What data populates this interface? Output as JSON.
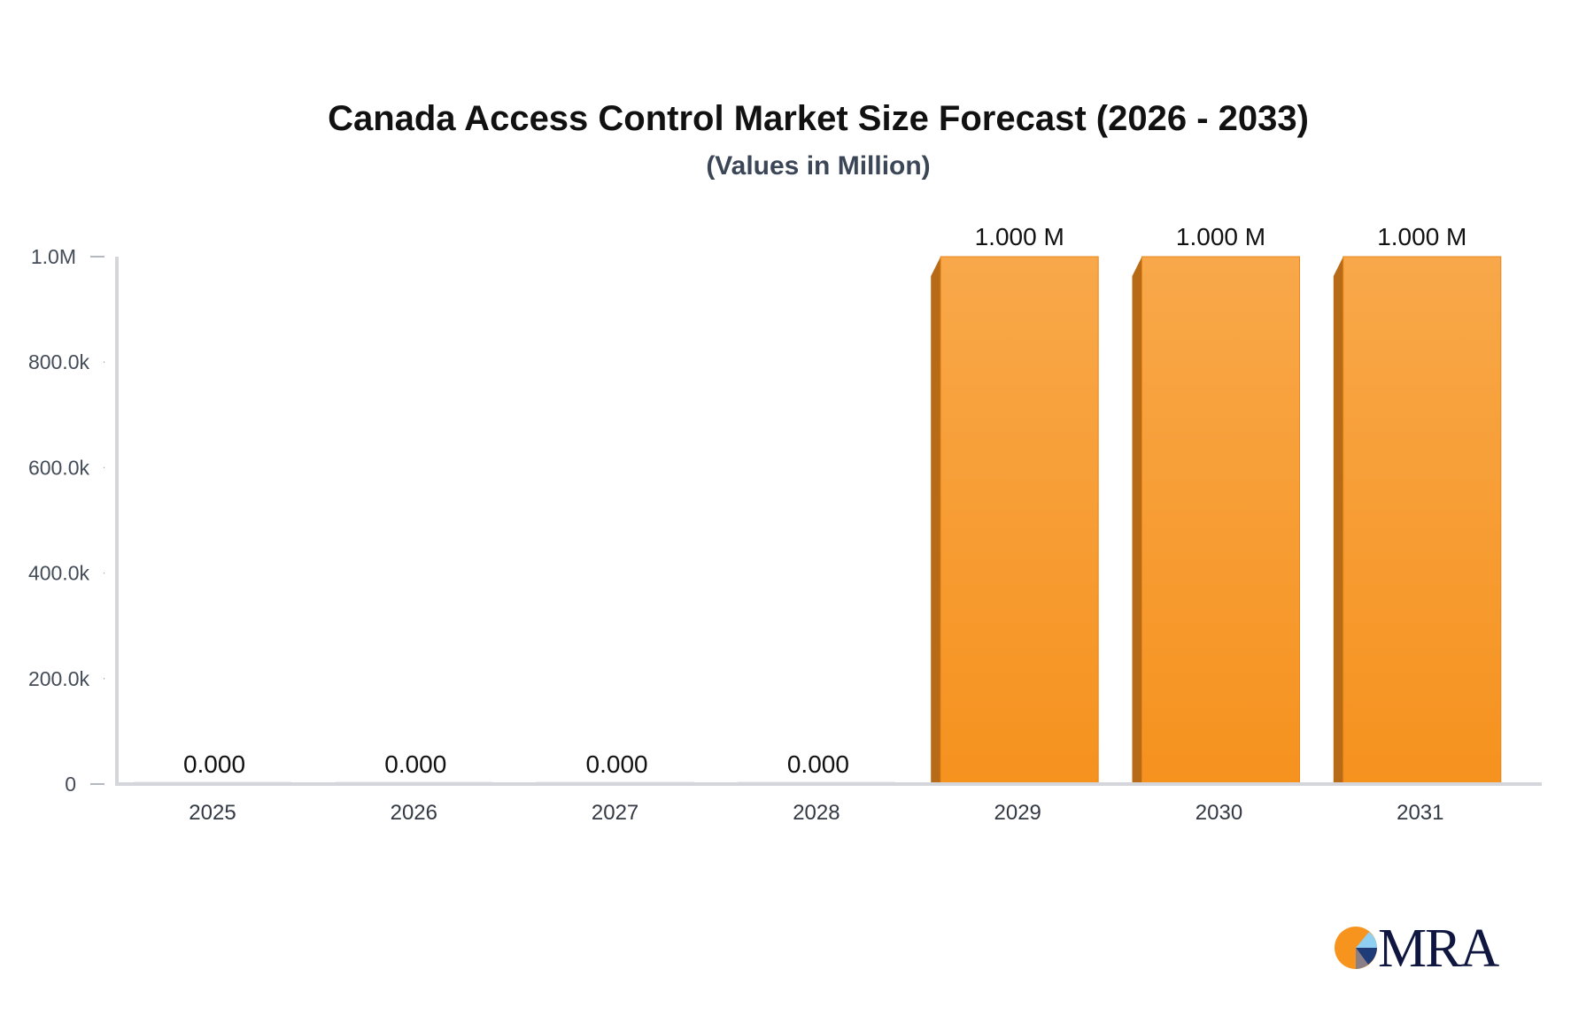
{
  "chart_data": {
    "type": "bar",
    "title": "Canada Access Control Market Size Forecast (2026 - 2033)",
    "subtitle": "(Values in Million)",
    "categories": [
      "2025",
      "2026",
      "2027",
      "2028",
      "2029",
      "2030",
      "2031"
    ],
    "values": [
      0,
      0,
      0,
      0,
      1000000,
      1000000,
      1000000
    ],
    "data_labels": [
      "0.000",
      "0.000",
      "0.000",
      "0.000",
      "1.000 M",
      "1.000 M",
      "1.000 M"
    ],
    "yticks": [
      {
        "value": 0,
        "label": "0"
      },
      {
        "value": 200000,
        "label": "200.0k"
      },
      {
        "value": 400000,
        "label": "400.0k"
      },
      {
        "value": 600000,
        "label": "600.0k"
      },
      {
        "value": 800000,
        "label": "800.0k"
      },
      {
        "value": 1000000,
        "label": "1.0M"
      }
    ],
    "ylim": [
      0,
      1000000
    ],
    "xlabel": "",
    "ylabel": "",
    "grid": false,
    "bar_color": "#f7941d",
    "bar_side_color": "#b86b17"
  },
  "logo": {
    "text": "MRA"
  }
}
